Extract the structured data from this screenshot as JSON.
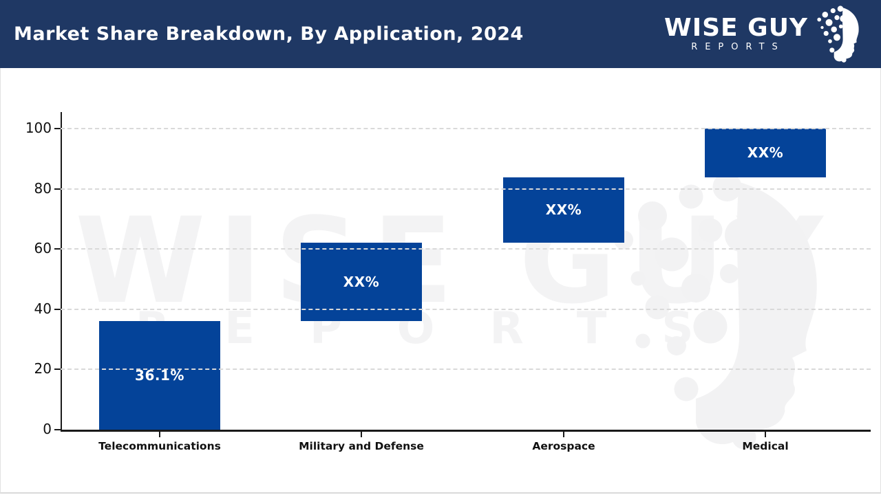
{
  "header": {
    "title": "Market Share Breakdown, By Application, 2024",
    "logo": {
      "line1": "WISE GUY",
      "line2": "REPORTS"
    }
  },
  "watermark": {
    "line1": "WISE GUY",
    "line2": "REPORTS"
  },
  "colors": {
    "header_bg": "#1f3864",
    "bar": "#044399",
    "grid": "#d9d9d9",
    "axis": "#1a1a1a",
    "bar_label_text": "#ffffff",
    "watermark": "#f3f3f4"
  },
  "chart_data": {
    "type": "bar",
    "variant": "waterfall",
    "title": "Market Share Breakdown, By Application, 2024",
    "categories": [
      "Telecommunications",
      "Military and Defense",
      "Aerospace",
      "Medical"
    ],
    "segments": [
      {
        "category": "Telecommunications",
        "start": 0,
        "end": 36.1,
        "label": "36.1%"
      },
      {
        "category": "Military and Defense",
        "start": 36.1,
        "end": 62.1,
        "label": "XX%"
      },
      {
        "category": "Aerospace",
        "start": 62.1,
        "end": 83.8,
        "label": "XX%"
      },
      {
        "category": "Medical",
        "start": 83.8,
        "end": 100,
        "label": "XX%"
      }
    ],
    "yticks": [
      0,
      20,
      40,
      60,
      80,
      100
    ],
    "ylim": [
      0,
      105
    ],
    "grid": "horizontal-dashed",
    "legend": "none"
  }
}
